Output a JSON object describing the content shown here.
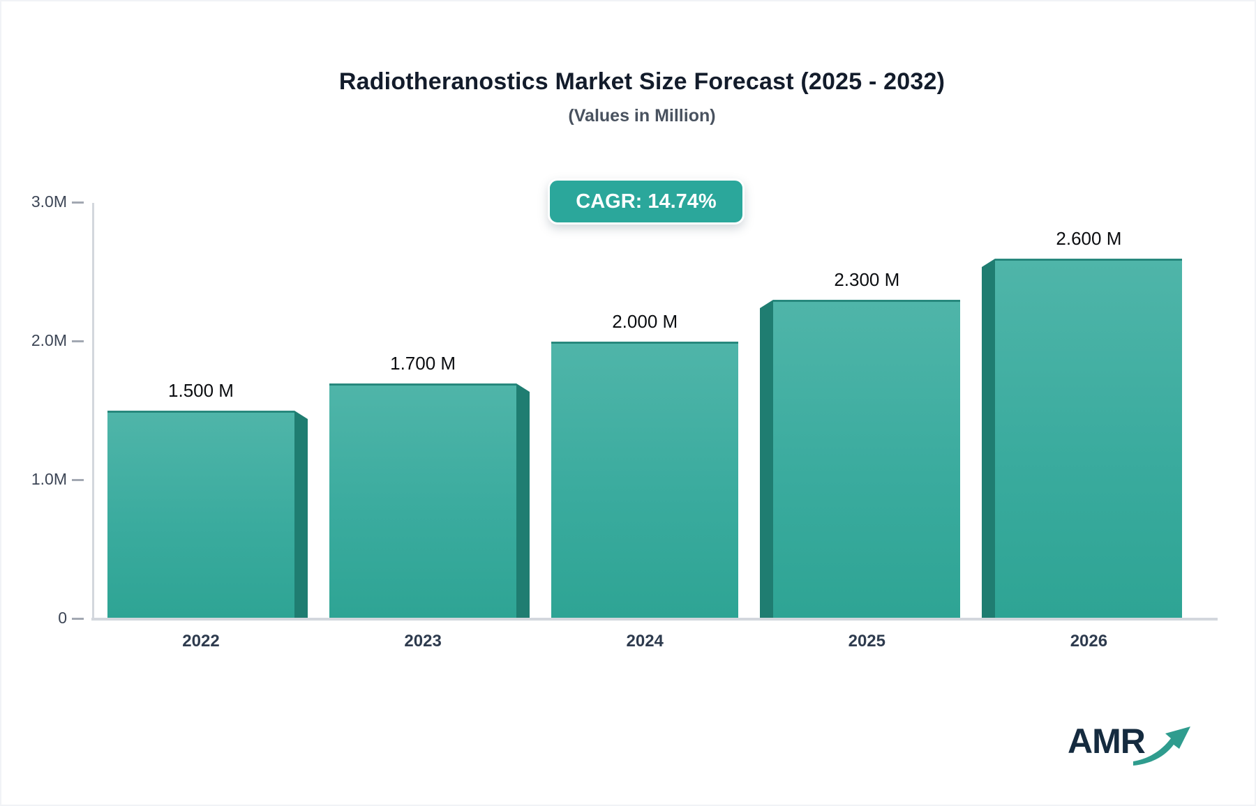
{
  "header": {
    "title": "Radiotheranostics Market Size Forecast (2025 - 2032)",
    "subtitle": "(Values in Million)",
    "cagr_badge_label": "CAGR: 14.74%"
  },
  "chart_data": {
    "type": "bar",
    "title": "Radiotheranostics Market Size Forecast (2025 - 2032)",
    "subtitle": "(Values in Million)",
    "unit": "Million",
    "cagr_percent": 14.74,
    "categories": [
      "2022",
      "2023",
      "2024",
      "2025",
      "2026"
    ],
    "values": [
      1.5,
      1.7,
      2.0,
      2.3,
      2.6
    ],
    "value_labels": [
      "1.500 M",
      "1.700 M",
      "2.000 M",
      "2.300 M",
      "2.600 M"
    ],
    "ylim": [
      0,
      3.0
    ],
    "yticks": [
      {
        "value": 0,
        "label": "0"
      },
      {
        "value": 1.0,
        "label": "1.0M"
      },
      {
        "value": 2.0,
        "label": "2.0M"
      },
      {
        "value": 3.0,
        "label": "3.0M"
      }
    ],
    "grid": false,
    "legend": false,
    "bar_style": "pseudo-3d",
    "colors": {
      "bar_face_top": "#4fb5a9",
      "bar_face_mid": "#3aab9e",
      "bar_face_bottom": "#2ea494",
      "bar_top_edge": "#27887d",
      "bar_side_3d": "#1f7d71",
      "badge_bg": "#2ba79b",
      "axis_line": "#d3d7dd",
      "tick_mark": "#a2a8b2"
    }
  },
  "logo": {
    "text": "AMR",
    "text_color": "#152b3f",
    "arrow_color": "#2f9c8e"
  }
}
